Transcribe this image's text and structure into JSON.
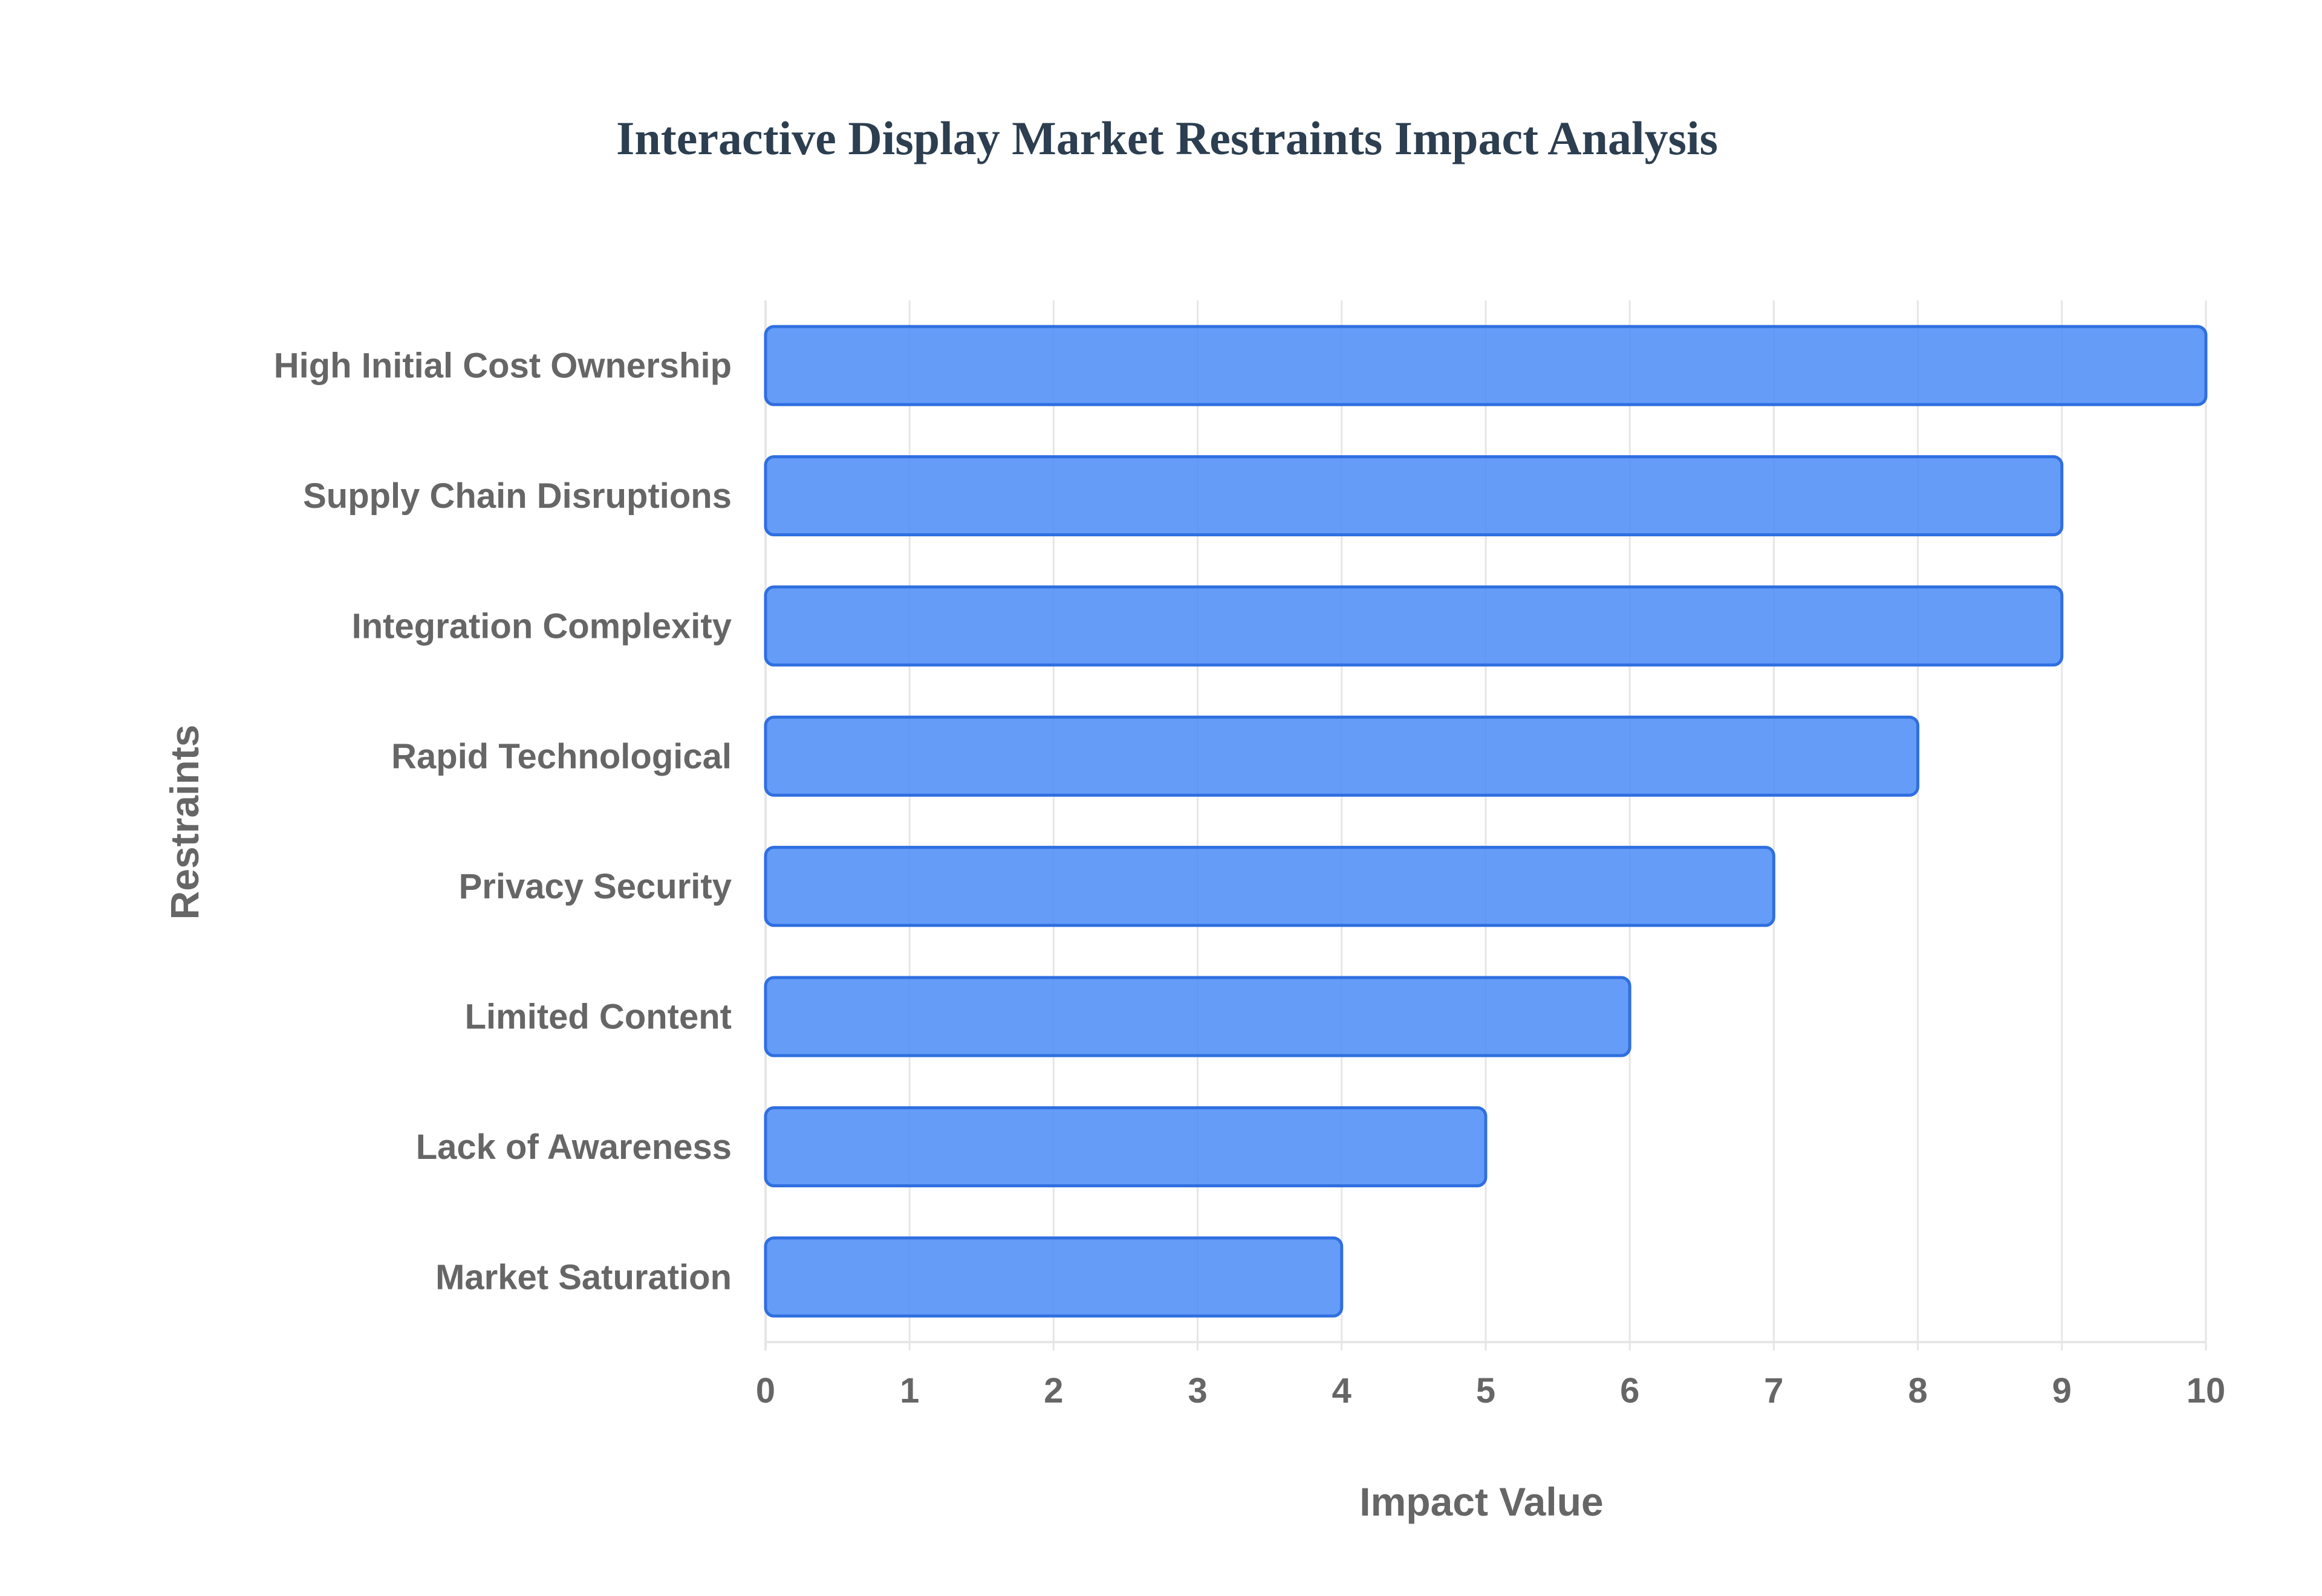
{
  "chart_data": {
    "type": "bar",
    "orientation": "horizontal",
    "title": "Interactive Display Market Restraints Impact Analysis",
    "xlabel": "Impact Value",
    "ylabel": "Restraints",
    "categories": [
      "High Initial Cost Ownership",
      "Supply Chain Disruptions",
      "Integration Complexity",
      "Rapid Technological",
      "Privacy Security",
      "Limited Content",
      "Lack of Awareness",
      "Market Saturation"
    ],
    "values": [
      10,
      9,
      9,
      8,
      7,
      6,
      5,
      4
    ],
    "xlim": [
      0,
      10
    ],
    "xticks": [
      "0",
      "1",
      "2",
      "3",
      "4",
      "5",
      "6",
      "7",
      "8",
      "9",
      "10"
    ],
    "grid": true,
    "legend": false,
    "colors": {
      "bar_fill": "#4f8ef7",
      "bar_stroke": "#2f6fe0",
      "title": "#2c3e50",
      "text": "#666666",
      "grid": "#e6e6e6"
    }
  }
}
